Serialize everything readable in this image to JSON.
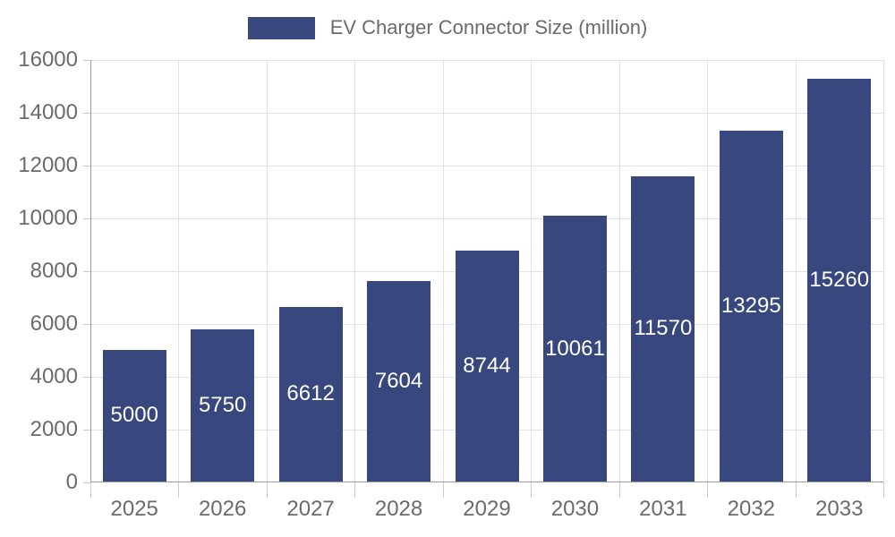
{
  "legend": {
    "label": "EV Charger Connector Size (million)"
  },
  "colors": {
    "bar": "#38487E",
    "grid": "#E2E2E6",
    "axis_line": "#9A9A9A",
    "tick": "#CCCCCC",
    "tick_text": "#6B6B6B",
    "value_label": "#FFFFFF",
    "background": "#FFFFFF"
  },
  "chart_data": {
    "type": "bar",
    "title": "",
    "xlabel": "",
    "ylabel": "",
    "categories": [
      "2025",
      "2026",
      "2027",
      "2028",
      "2029",
      "2030",
      "2031",
      "2032",
      "2033"
    ],
    "series": [
      {
        "name": "EV Charger Connector Size (million)",
        "values": [
          5000,
          5750,
          6612,
          7604,
          8744,
          10061,
          11570,
          13295,
          15260
        ]
      }
    ],
    "ylim": [
      0,
      16000
    ],
    "ytick_interval": 2000,
    "yticks": [
      0,
      2000,
      4000,
      6000,
      8000,
      10000,
      12000,
      14000,
      16000
    ],
    "grid": true,
    "legend_position": "top-center",
    "value_labels": "inside-center"
  }
}
